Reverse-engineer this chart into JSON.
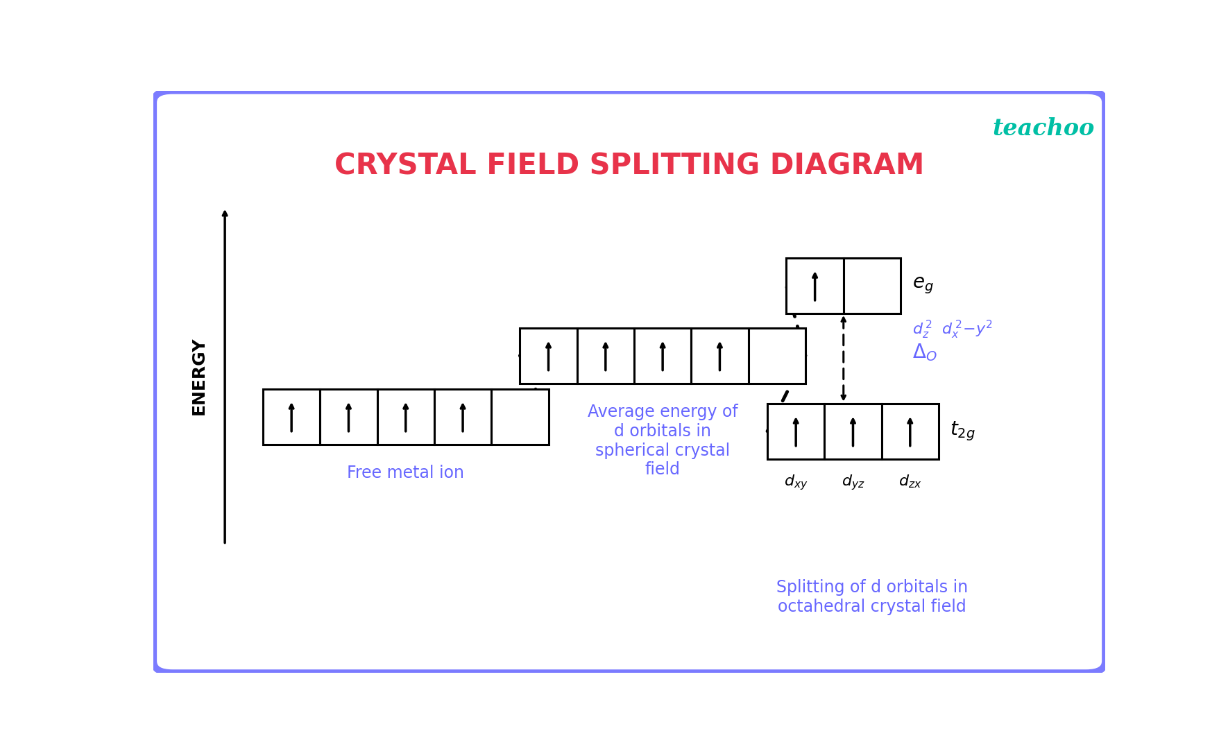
{
  "title": "CRYSTAL FIELD SPLITTING DIAGRAM",
  "title_color": "#e8334a",
  "title_fontsize": 30,
  "bg_color": "#ffffff",
  "border_color": "#7b7bff",
  "teachoo_color": "#00bfa5",
  "blue_label_color": "#6666ff",
  "free_ion_label": "Free metal ion",
  "spherical_label": "Average energy of\nd orbitals in\nspherical crystal\nfield",
  "split_label": "Splitting of d orbitals in\noctahedral crystal field",
  "energy_label": "ENERGY"
}
